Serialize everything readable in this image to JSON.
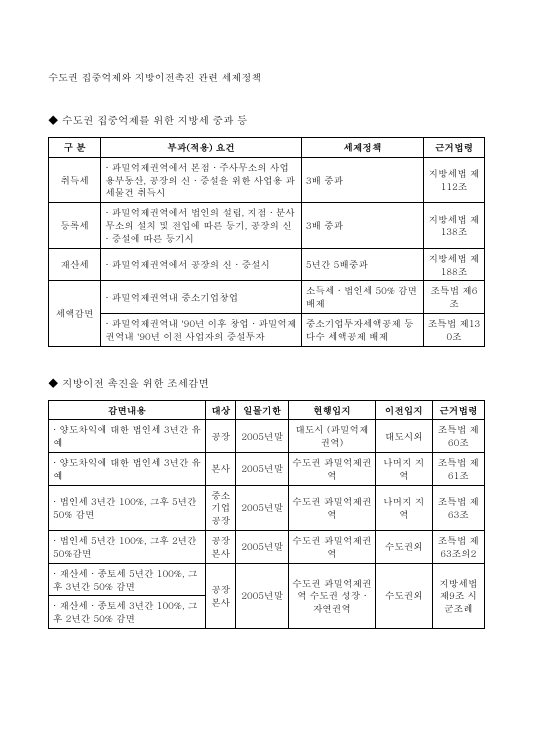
{
  "doc_title": "수도권 집중억제와 지방이전촉진 관련 세제정책",
  "section1": {
    "heading": "◆ 수도권 집중억제를 위한 지방세 중과 등",
    "headers": [
      "구     분",
      "부과(적용) 요건",
      "세제정책",
      "근거법령"
    ],
    "rows": [
      {
        "c0": "취득세",
        "c1": "· 과밀억제권역에서 본점 · 주사무소의 사업용부동산, 공장의 신 · 증설을 위한 사업용 과세물건 취득시",
        "c2": "3배 중과",
        "c3": "지방세법 제112조"
      },
      {
        "c0": "등록세",
        "c1": "· 과밀억제권역에서 법인의 설립, 지점 · 분사무소의 설치 및 전입에 따른 등기, 공장의 신 · 증설에 따른 등기시",
        "c2": "3배 중과",
        "c3": "지방세법 제138조"
      },
      {
        "c0": "재산세",
        "c1": "· 과밀억제권역에서 공장의 신 · 증설시",
        "c2": "5년간 5배중과",
        "c3": "지방세법 제188조"
      },
      {
        "c0": "세액감면",
        "c1a": "· 과밀억제권역내 중소기업창업",
        "c1b": "· 과밀억제권역내 '90년 이후 창업\n· 과밀억제권역내 '90년 이전 사업자의 증설투자",
        "c2a": "소득세 · 법인세 50% 감면 배제",
        "c2b": "중소기업투자세액공제 등 다수 세액공제 배제",
        "c3a": "조특법 제6조",
        "c3b": "조특법 제130조"
      }
    ]
  },
  "section2": {
    "heading": "◆ 지방이전 촉진을 위한 조세감면",
    "headers": [
      "감면내용",
      "대상",
      "일몰기한",
      "현행입지",
      "이전입지",
      "근거법령"
    ],
    "rows": [
      {
        "c0": "· 양도차익에 대한 법인세 3년간 유예",
        "c1": "공장",
        "c2": "2005년말",
        "c3": "대도시\n(과밀억제권역)",
        "c4": "대도시외",
        "c5": "조특법 제60조"
      },
      {
        "c0": "· 양도차익에 대한 법인세 3년간 유예",
        "c1": "본사",
        "c2": "2005년말",
        "c3": "수도권\n과밀억제권역",
        "c4": "나머지 지역",
        "c5": "조특법 제61조"
      },
      {
        "c0": "· 법인세 3년간 100%, 그후 5년간 50% 감면",
        "c1": "중소기업공장",
        "c2": "2005년말",
        "c3": "수도권 과밀억제권역",
        "c4": "나머지 지역",
        "c5": "조특법 제63조"
      },
      {
        "c0": "· 법인세 5년간 100%, 그후 2년간 50%감면",
        "c1": "공장본사",
        "c2": "2005년말",
        "c3": "수도권\n과밀억제권역",
        "c4": "수도권외",
        "c5": "조특법 제63조의2"
      },
      {
        "c0a": "· 재산세 · 종토세 5년간 100%, 그후 3년간 50% 감면",
        "c0b": "· 재산세 · 종토세 3년간 100%, 그후 2년간 50% 감면",
        "c1": "공장본사",
        "c2": "2005년말",
        "c3": "수도권\n과밀억제권역\n수도권\n성장 · 자연권역",
        "c4": "수도권외",
        "c5": "지방세법 제9조\n시군조례"
      }
    ]
  }
}
